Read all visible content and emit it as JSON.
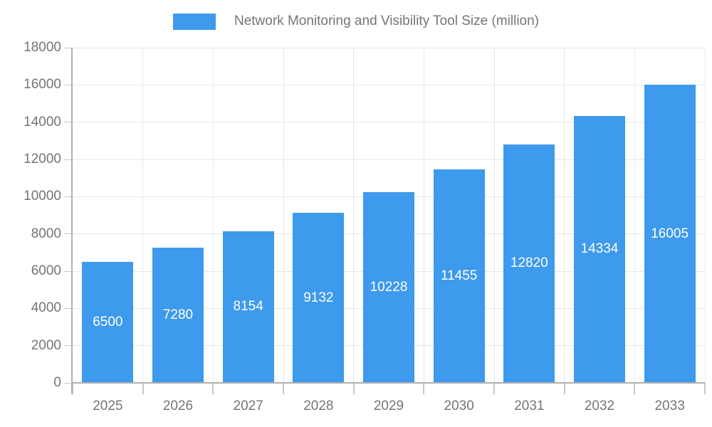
{
  "chart_data": {
    "type": "bar",
    "title": "Network Monitoring and Visibility Tool Size (million)",
    "legend_position": "top",
    "categories": [
      "2025",
      "2026",
      "2027",
      "2028",
      "2029",
      "2030",
      "2031",
      "2032",
      "2033"
    ],
    "values": [
      6500,
      7280,
      8154,
      9132,
      10228,
      11455,
      12820,
      14334,
      16005
    ],
    "xlabel": "",
    "ylabel": "",
    "ylim": [
      0,
      18000
    ],
    "yticks": [
      0,
      2000,
      4000,
      6000,
      8000,
      10000,
      12000,
      14000,
      16000,
      18000
    ],
    "grid": true,
    "colors": {
      "bar": "#3d9aec",
      "value_label": "#ffffff",
      "axis_text": "#757575",
      "grid_line": "#e6e6e6",
      "axis_line": "#b0b0b0",
      "tick": "#c6c6c6",
      "background": "#ffffff"
    }
  }
}
